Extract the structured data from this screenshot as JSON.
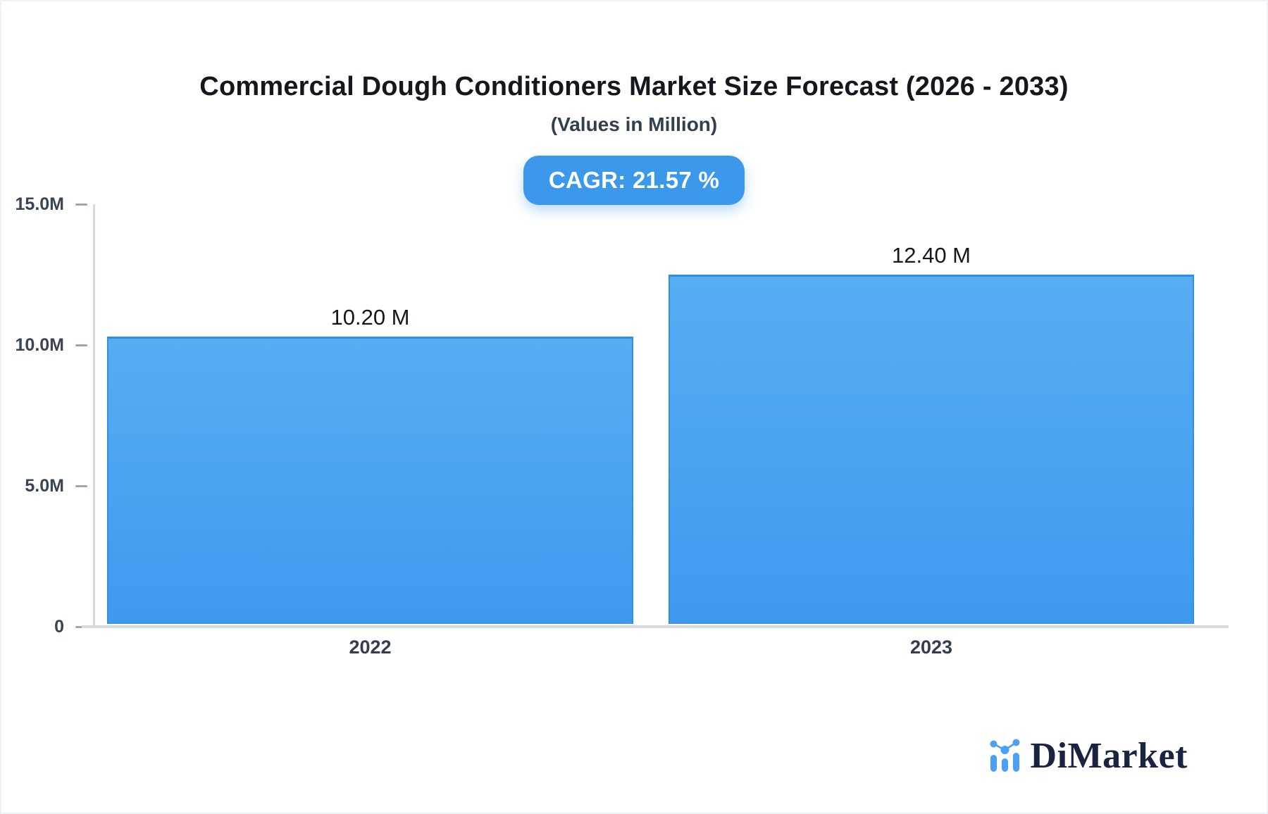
{
  "chart_data": {
    "type": "bar",
    "title": "Commercial Dough Conditioners Market Size Forecast (2026 - 2033)",
    "subtitle": "(Values in Million)",
    "cagr_badge": "CAGR: 21.57 %",
    "categories": [
      "2022",
      "2023"
    ],
    "values": [
      10.2,
      12.4
    ],
    "bar_labels": [
      "10.20 M",
      "12.40 M"
    ],
    "unit": "Million",
    "xlabel": "",
    "ylabel": "",
    "ylim": [
      0,
      15
    ],
    "y_ticks": [
      {
        "value": 15,
        "label": "15.0M"
      },
      {
        "value": 10,
        "label": "10.0M"
      },
      {
        "value": 5,
        "label": "5.0M"
      },
      {
        "value": 0,
        "label": "0"
      }
    ],
    "grid": false,
    "legend": false
  },
  "branding": {
    "logo_text": "DiMarket",
    "logo_icon": "bar-chart-icon"
  },
  "colors": {
    "bar_top": "#58ACF2",
    "bar_bottom": "#3E99EF",
    "bar_border": "#2E8FE3",
    "badge_bg": "#3C98EB",
    "axis_line": "#D6D9DF",
    "tick_dash": "#9FA6B0",
    "logo_blue": "#4AA0F3",
    "logo_navy": "#1A2440"
  }
}
